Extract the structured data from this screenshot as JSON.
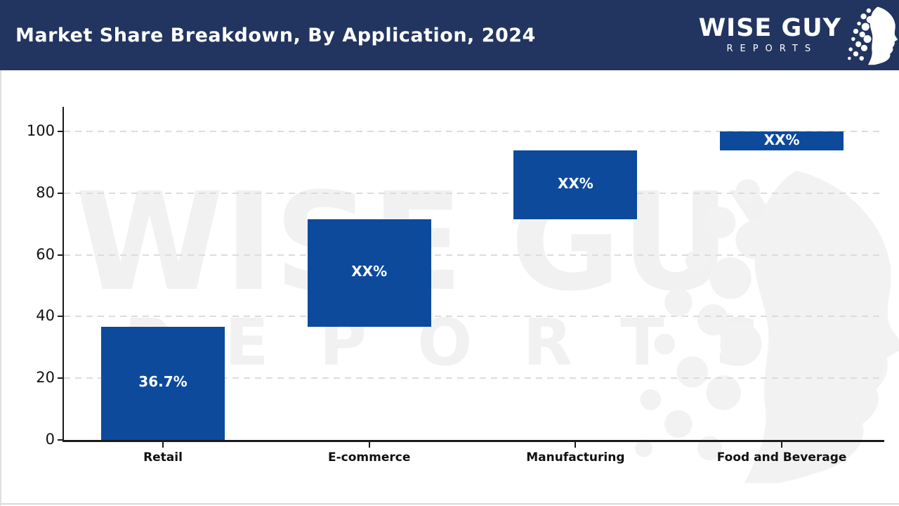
{
  "header": {
    "title": "Market Share Breakdown, By Application, 2024",
    "brand": {
      "line1": "WISE GUY",
      "line2": "REPORTS"
    },
    "bg_color": "#223560"
  },
  "watermark": {
    "line1": "WISE GUY",
    "line2": "REPORTS"
  },
  "chart_data": {
    "type": "bar",
    "subtype": "waterfall",
    "title": "Market Share Breakdown, By Application, 2024",
    "categories": [
      "Retail",
      "E-commerce",
      "Manufacturing",
      "Food and Beverage"
    ],
    "segments": [
      {
        "label": "Retail",
        "start": 0,
        "end": 36.7,
        "value": 36.7,
        "value_label": "36.7%"
      },
      {
        "label": "E-commerce",
        "start": 36.7,
        "end": 71.6,
        "value": 34.9,
        "value_label": "XX%"
      },
      {
        "label": "Manufacturing",
        "start": 71.6,
        "end": 93.8,
        "value": 22.2,
        "value_label": "XX%"
      },
      {
        "label": "Food and Beverage",
        "start": 93.8,
        "end": 100,
        "value": 6.2,
        "value_label": "XX%"
      }
    ],
    "bar_color": "#0d4a9c",
    "axis_color": "#1a1a1a",
    "grid_color": "#dcdcdc",
    "ylim": [
      0,
      100
    ],
    "yticks": [
      0,
      20,
      40,
      60,
      80,
      100
    ],
    "grid": "dashed horizontal",
    "legend": "none"
  }
}
